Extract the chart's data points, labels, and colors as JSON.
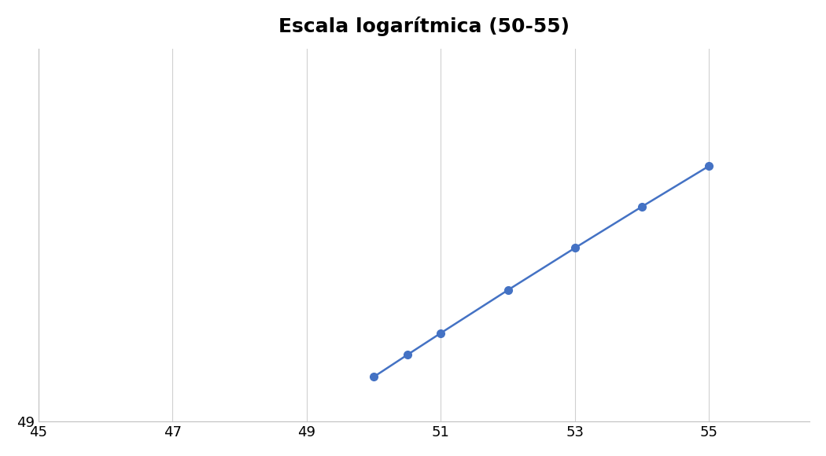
{
  "title": "Escala logarítmica (50-55)",
  "x_data": [
    50.0,
    50.5,
    51.0,
    52.0,
    53.0,
    54.0,
    55.0
  ],
  "y_data": [
    50.0,
    50.5,
    51.0,
    52.0,
    53.0,
    54.0,
    55.0
  ],
  "xlim": [
    45,
    56.5
  ],
  "ylim": [
    49.0,
    58.0
  ],
  "xticks": [
    45,
    47,
    49,
    51,
    53,
    55
  ],
  "ytick_value": 49,
  "line_color": "#4472C4",
  "marker_color": "#4472C4",
  "marker_size": 7,
  "line_width": 1.8,
  "title_fontsize": 18,
  "tick_fontsize": 13,
  "background_color": "#ffffff",
  "grid_color": "#d0d0d0",
  "grid_linewidth": 0.8,
  "spine_color": "#c0c0c0"
}
